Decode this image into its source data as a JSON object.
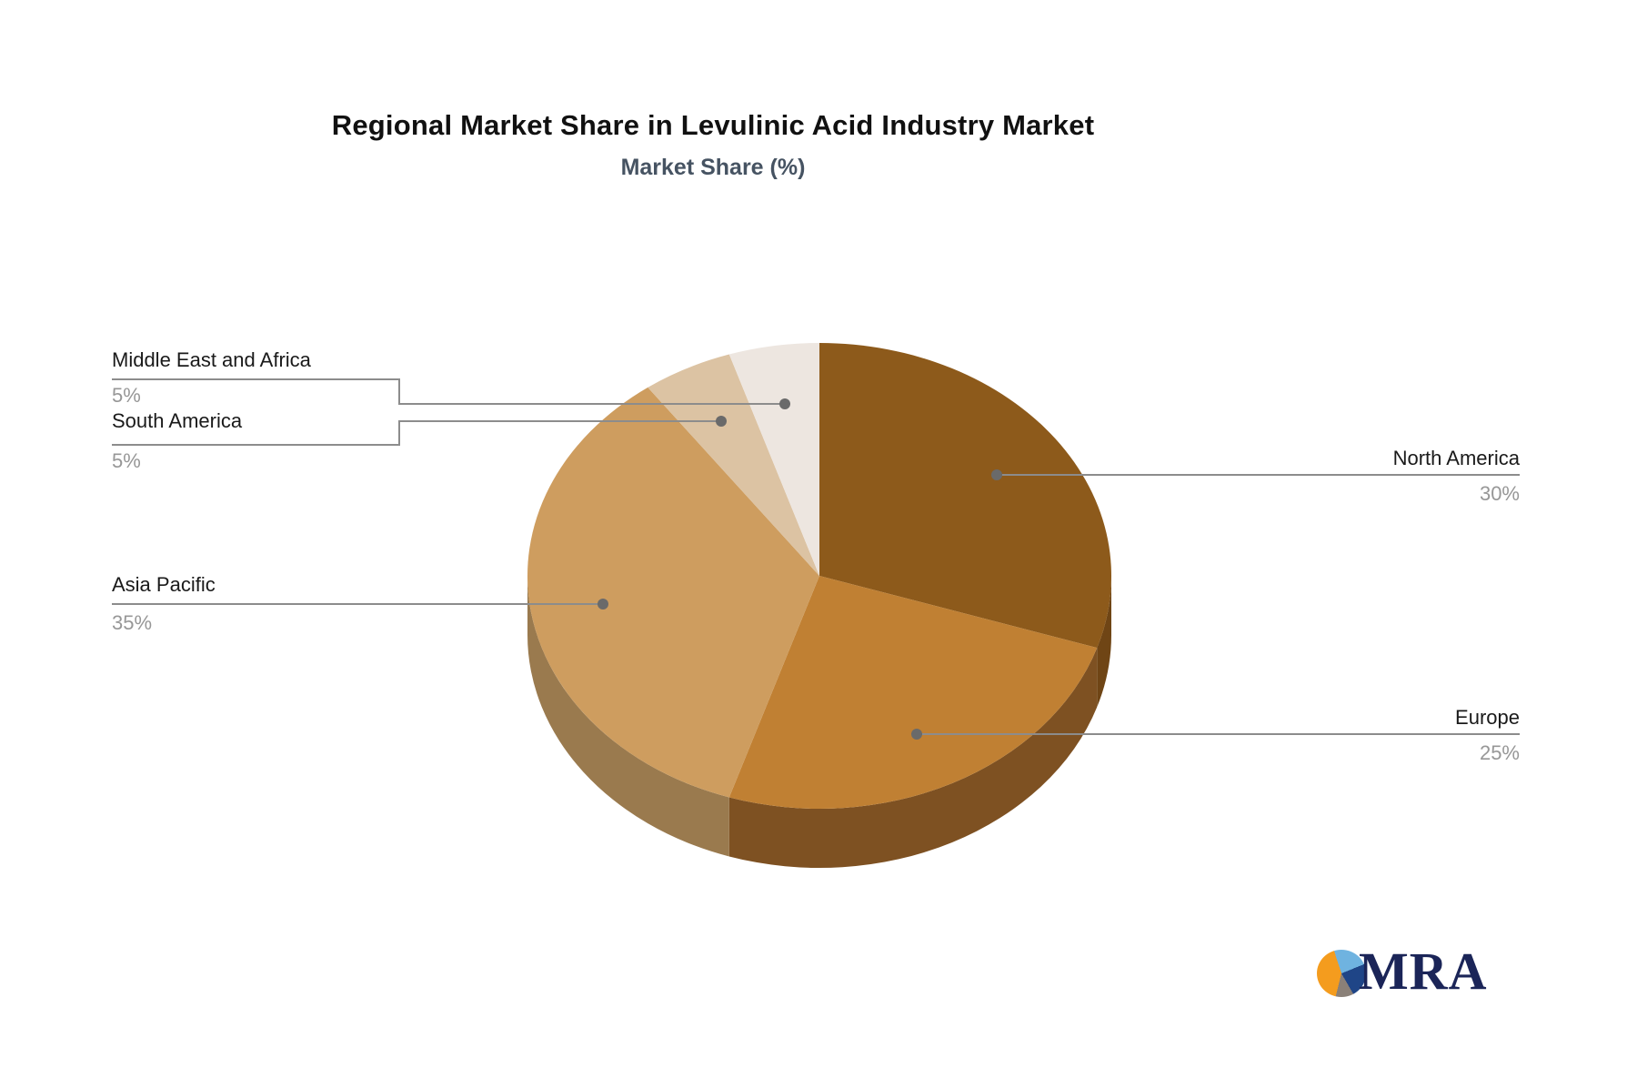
{
  "header": {
    "title": "Regional Market Share in Levulinic Acid Industry Market",
    "subtitle": "Market Share (%)"
  },
  "chart_data": {
    "type": "pie",
    "title": "Regional Market Share in Levulinic Acid Industry Market",
    "subtitle": "Market Share (%)",
    "unit": "%",
    "effect": "3d",
    "direction": "clockwise",
    "start_angle_deg": 0,
    "legend": "none",
    "labels": [
      "North America",
      "Europe",
      "Asia Pacific",
      "South America",
      "Middle East and Africa"
    ],
    "values": [
      30,
      25,
      35,
      5,
      5
    ],
    "value_labels": [
      "30%",
      "25%",
      "35%",
      "5%",
      "5%"
    ],
    "colors": [
      "#8D5A1B",
      "#C08033",
      "#CE9D5F",
      "#DCC3A3",
      "#EDE6E0"
    ],
    "side_colors": [
      "#6F4515",
      "#7E5122",
      "#9A7A4E",
      "#B89A76",
      "#CBBFB6"
    ],
    "leader_line_color": "#8c8c8c",
    "label_text_color": "#1a1a1a",
    "value_text_color": "#979797"
  },
  "logo": {
    "text": "MRA",
    "navy": "#1b2558",
    "orange": "#f49c1e",
    "light_blue": "#6fb3e0",
    "dark_blue": "#1f4587",
    "gray": "#8a8078"
  }
}
